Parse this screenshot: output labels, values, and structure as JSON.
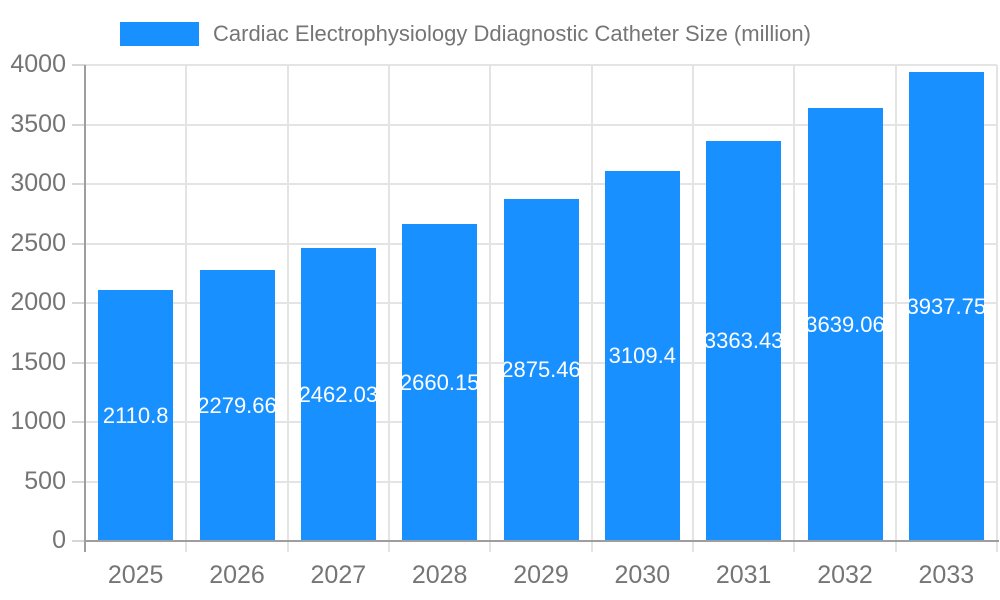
{
  "legend": {
    "label": "Cardiac Electrophysiology Ddiagnostic Catheter Size (million)"
  },
  "colors": {
    "bar": "#1890FF",
    "gridline": "#E4E4E4",
    "axis": "#9E9E9E",
    "tick": "#D6D6D6",
    "axis_label": "#757575",
    "legend_text": "#757575",
    "bar_label": "#FFFFFF",
    "background": "#FFFFFF"
  },
  "chart_data": {
    "type": "bar",
    "title": "Cardiac Electrophysiology Ddiagnostic Catheter Size (million)",
    "categories": [
      "2025",
      "2026",
      "2027",
      "2028",
      "2029",
      "2030",
      "2031",
      "2032",
      "2033"
    ],
    "series": [
      {
        "name": "Cardiac Electrophysiology Ddiagnostic Catheter Size (million)",
        "values": [
          2110.8,
          2279.66,
          2462.03,
          2660.15,
          2875.46,
          3109.4,
          3363.43,
          3639.06,
          3937.75
        ],
        "labels": [
          "2110.8",
          "2279.66",
          "2462.03",
          "2660.15",
          "2875.46",
          "3109.4",
          "3363.43",
          "3639.06",
          "3937.75"
        ]
      }
    ],
    "xlabel": "",
    "ylabel": "",
    "ylim": [
      0,
      4000
    ],
    "y_ticks": [
      0,
      500,
      1000,
      1500,
      2000,
      2500,
      3000,
      3500,
      4000
    ],
    "grid": "both",
    "legend_position": "top-left",
    "bar_label_position": "center-inside",
    "bar_label_clipped_to_bar": true
  }
}
